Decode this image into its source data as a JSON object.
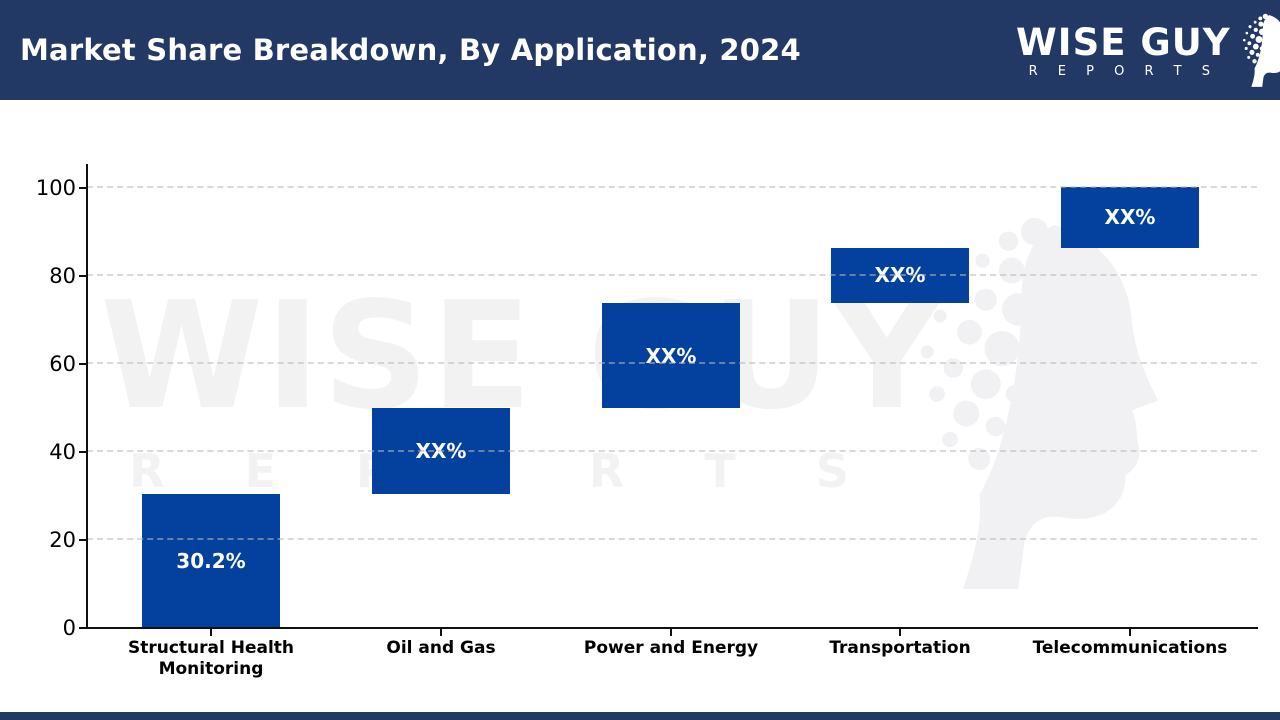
{
  "header": {
    "title": "Market Share Breakdown, By Application, 2024",
    "logo": {
      "line1": "WISE GUY",
      "line2": "R E P O R T S",
      "icon": "wiseguy-head-icon"
    }
  },
  "watermark": {
    "line1": "WISE GUY",
    "line2": "R E P O R T S",
    "icon": "wiseguy-head-watermark-icon"
  },
  "colors": {
    "header_bg": "#223965",
    "footer_bg": "#223965",
    "bar": "#04419e",
    "axis": "#111111",
    "grid": "#dcdcdc",
    "tick_text": "#000000",
    "bar_label_text": "#ffffff",
    "watermark": "#f2f2f2"
  },
  "chart_data": {
    "type": "bar",
    "subtype": "waterfall",
    "title": "Market Share Breakdown, By Application, 2024",
    "xlabel": "",
    "ylabel": "",
    "ylim": [
      0,
      100
    ],
    "yticks": [
      0,
      20,
      40,
      60,
      80,
      100
    ],
    "grid": "horizontal-dashed",
    "legend": null,
    "categories": [
      "Structural Health Monitoring",
      "Oil and Gas",
      "Power and Energy",
      "Transportation",
      "Telecommunications"
    ],
    "bars": [
      {
        "category": "Structural Health Monitoring",
        "start": 0,
        "end": 30.2,
        "label": "30.2%"
      },
      {
        "category": "Oil and Gas",
        "start": 30.2,
        "end": 49.8,
        "label": "XX%"
      },
      {
        "category": "Power and Energy",
        "start": 49.8,
        "end": 73.6,
        "label": "XX%"
      },
      {
        "category": "Transportation",
        "start": 73.6,
        "end": 86.2,
        "label": "XX%"
      },
      {
        "category": "Telecommunications",
        "start": 86.2,
        "end": 100,
        "label": "XX%"
      }
    ]
  }
}
